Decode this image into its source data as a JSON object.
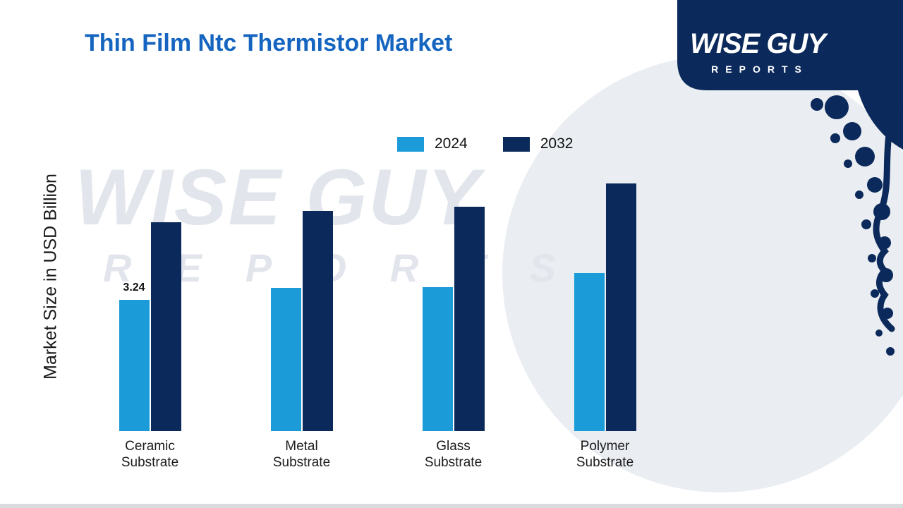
{
  "page": {
    "title": "Thin Film Ntc Thermistor Market"
  },
  "logo": {
    "line1": "WISE GUY",
    "line2": "REPORTS"
  },
  "watermark": {
    "line1": "WISE GUY",
    "line2": "REPORTS"
  },
  "chart_data": {
    "type": "bar",
    "title": "Thin Film Ntc Thermistor Market",
    "xlabel": "",
    "ylabel": "Market Size in USD Billion",
    "categories": [
      "Ceramic Substrate",
      "Metal Substrate",
      "Glass Substrate",
      "Polymer Substrate"
    ],
    "series": [
      {
        "name": "2024",
        "color": "#1b9bd8",
        "values": [
          3.24,
          3.54,
          3.57,
          3.91
        ]
      },
      {
        "name": "2032",
        "color": "#0b2a5b",
        "values": [
          5.17,
          5.46,
          5.55,
          6.13
        ]
      }
    ],
    "ylim": [
      0,
      6.6
    ],
    "grid": false,
    "legend_position": "top",
    "value_labels": [
      {
        "series": 0,
        "category": 0,
        "text": "3.24"
      }
    ],
    "colors": {
      "series_2024": "#1b9bd8",
      "series_2032": "#0b2a5b",
      "title": "#1565c0",
      "watermark": "#e2e6ec"
    }
  }
}
